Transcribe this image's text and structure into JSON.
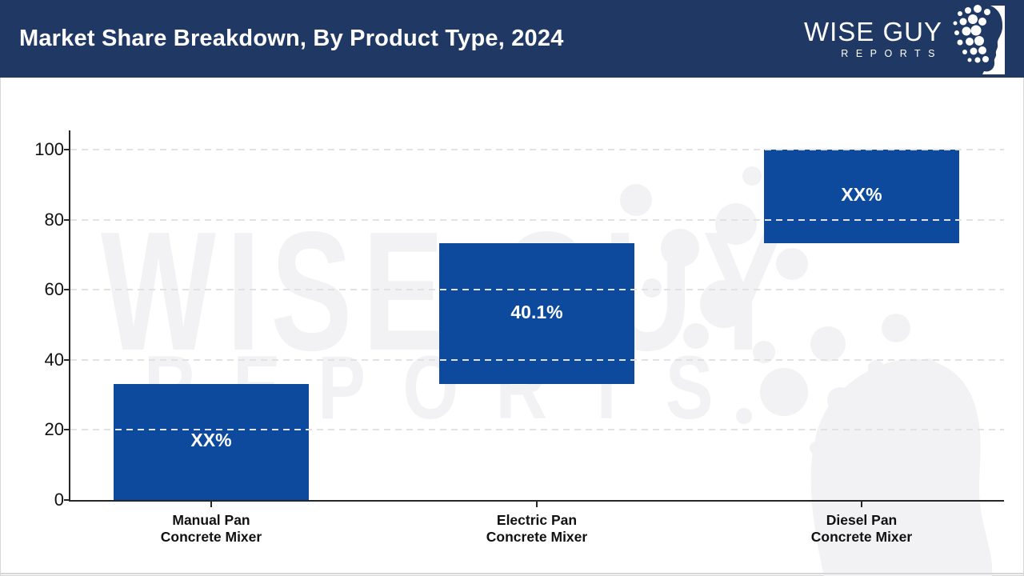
{
  "header": {
    "title": "Market Share Breakdown, By Product Type, 2024",
    "logo": {
      "name": "WISE GUY",
      "sub": "REPORTS"
    }
  },
  "watermark": {
    "name": "WISE GUY",
    "sub": "REPORTS"
  },
  "colors": {
    "header_bg": "#203864",
    "bar": "#0d4a9e",
    "bar_label": "#ffffff",
    "axis": "#262626",
    "grid": "#e2e2e2",
    "tick_label": "#111111",
    "watermark": "#f2f2f4"
  },
  "chart_data": {
    "type": "bar",
    "subtype": "floating-stacked-percentage",
    "title": "Market Share Breakdown, By Product Type, 2024",
    "categories": [
      "Manual Pan Concrete Mixer",
      "Electric Pan Concrete Mixer",
      "Diesel Pan Concrete Mixer"
    ],
    "category_label_lines": [
      [
        "Manual Pan",
        "Concrete Mixer"
      ],
      [
        "Electric Pan",
        "Concrete Mixer"
      ],
      [
        "Diesel Pan",
        "Concrete Mixer"
      ]
    ],
    "bars": [
      {
        "category": "Manual Pan Concrete Mixer",
        "label": "XX%",
        "start": 0,
        "end": 33.2,
        "value": 33.2
      },
      {
        "category": "Electric Pan Concrete Mixer",
        "label": "40.1%",
        "start": 33.2,
        "end": 73.3,
        "value": 40.1
      },
      {
        "category": "Diesel Pan Concrete Mixer",
        "label": "XX%",
        "start": 73.3,
        "end": 100,
        "value": 26.7
      }
    ],
    "xlabel": "",
    "ylabel": "",
    "ylim": [
      0,
      100
    ],
    "yticks": [
      0,
      20,
      40,
      60,
      80,
      100
    ],
    "grid": "horizontal-dashed",
    "legend": "none"
  }
}
